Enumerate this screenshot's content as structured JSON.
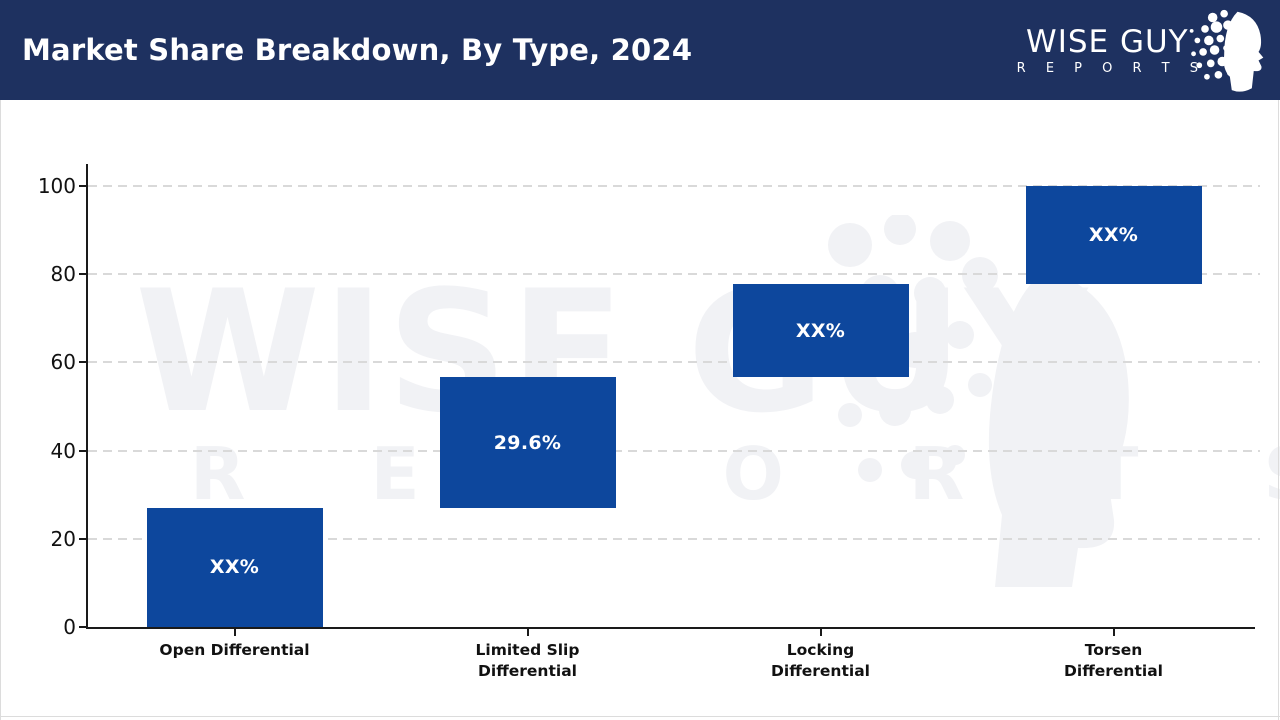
{
  "header": {
    "title": "Market Share Breakdown, By Type, 2024",
    "bg_color": "#1e3160",
    "logo": {
      "wordmark": "WISE GUY",
      "subtext": "R E P O R T S"
    }
  },
  "watermark": {
    "wordmark": "WISE GUY",
    "subtext": "R E P O R T S",
    "color": "#f1f2f5"
  },
  "chart_data": {
    "type": "bar",
    "subtype": "floating-waterfall",
    "title": "Market Share Breakdown, By Type, 2024",
    "categories": [
      "Open Differential",
      "Limited Slip\nDifferential",
      "Locking\nDifferential",
      "Torsen\nDifferential"
    ],
    "bars": [
      {
        "start": 0,
        "end": 27,
        "label": "XX%"
      },
      {
        "start": 27,
        "end": 56.6,
        "label": "29.6%"
      },
      {
        "start": 56.6,
        "end": 77.7,
        "label": "XX%"
      },
      {
        "start": 77.7,
        "end": 100,
        "label": "XX%"
      }
    ],
    "y_ticks": [
      0,
      20,
      40,
      60,
      80,
      100
    ],
    "ylim": [
      0,
      100
    ],
    "xlabel": "",
    "ylabel": "",
    "bar_color": "#0d479d",
    "grid": "dashed-horizontal",
    "grid_color": "#d9d9d9",
    "legend": "none"
  }
}
